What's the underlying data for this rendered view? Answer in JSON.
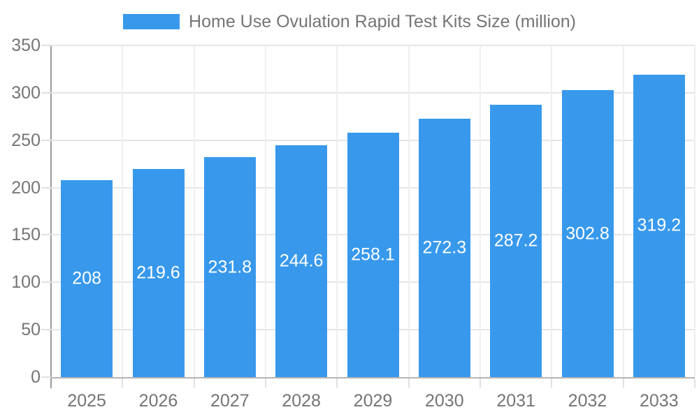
{
  "legend": {
    "swatch_color": "#3899ec",
    "label": "Home Use Ovulation Rapid Test Kits Size (million)"
  },
  "chart_data": {
    "type": "bar",
    "title": "Home Use Ovulation Rapid Test Kits Size (million)",
    "series_name": "Home Use Ovulation Rapid Test Kits Size (million)",
    "categories": [
      "2025",
      "2026",
      "2027",
      "2028",
      "2029",
      "2030",
      "2031",
      "2032",
      "2033"
    ],
    "values": [
      208,
      219.6,
      231.8,
      244.6,
      258.1,
      272.3,
      287.2,
      302.8,
      319.2
    ],
    "value_labels": [
      "208",
      "219.6",
      "231.8",
      "244.6",
      "258.1",
      "272.3",
      "287.2",
      "302.8",
      "319.2"
    ],
    "xlabel": "",
    "ylabel": "",
    "ylim": [
      0,
      350
    ],
    "ytick_step": 50,
    "yticks": [
      "0",
      "50",
      "100",
      "150",
      "200",
      "250",
      "300",
      "350"
    ],
    "grid": true,
    "legend_position": "top",
    "bar_color": "#3899ec",
    "value_label_color": "#ffffff",
    "axis_label_color": "#757575",
    "gridline_color": "#e6e6e6"
  }
}
